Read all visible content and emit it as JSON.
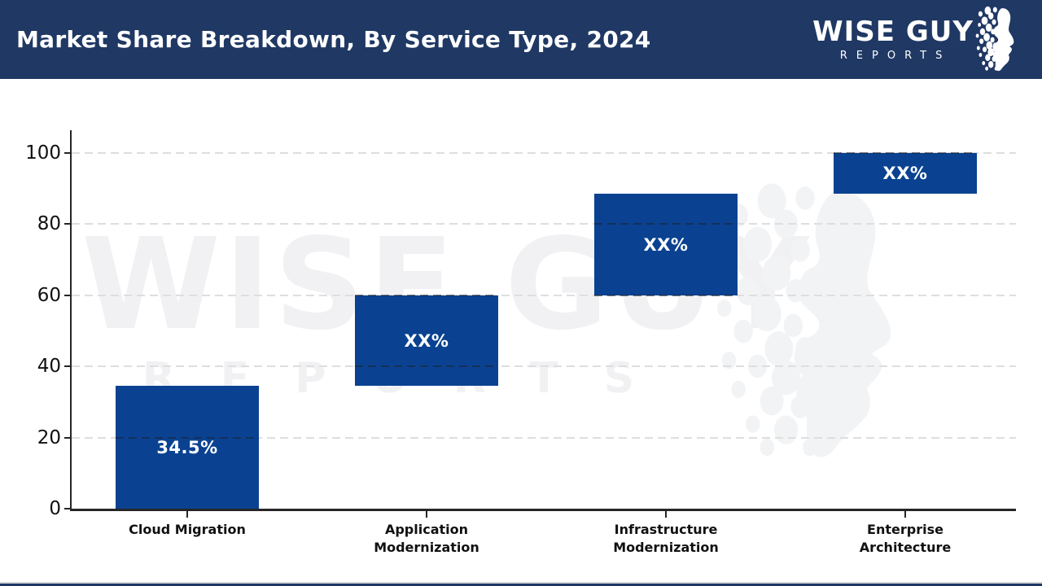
{
  "header": {
    "title": "Market Share Breakdown, By Service Type, 2024",
    "brand": {
      "name": "WISE GUY",
      "sub": "REPORTS"
    }
  },
  "watermark": {
    "line1": "WISE GUY",
    "line2": "REPORTS"
  },
  "chart_data": {
    "type": "bar",
    "variant": "waterfall",
    "title": "Market Share Breakdown, By Service Type, 2024",
    "categories": [
      "Cloud Migration",
      "Application Modernization",
      "Infrastructure Modernization",
      "Enterprise Architecture"
    ],
    "category_lines": [
      [
        "Cloud Migration"
      ],
      [
        "Application",
        "Modernization"
      ],
      [
        "Infrastructure",
        "Modernization"
      ],
      [
        "Enterprise",
        "Architecture"
      ]
    ],
    "segments": [
      {
        "category": "Cloud Migration",
        "start": 0,
        "end": 34.5,
        "value": 34.5,
        "label": "34.5%"
      },
      {
        "category": "Application Modernization",
        "start": 34.5,
        "end": 60,
        "value": 25.5,
        "label": "XX%"
      },
      {
        "category": "Infrastructure Modernization",
        "start": 60,
        "end": 88.5,
        "value": 28.5,
        "label": "XX%"
      },
      {
        "category": "Enterprise Architecture",
        "start": 88.5,
        "end": 100,
        "value": 11.5,
        "label": "XX%"
      }
    ],
    "xlabel": "",
    "ylabel": "",
    "ylim": [
      0,
      100
    ],
    "yticks": [
      0,
      20,
      40,
      60,
      80,
      100
    ],
    "grid": true,
    "legend": false,
    "bar_color": "#0a4291",
    "bar_label_color": "#ffffff"
  },
  "colors": {
    "header_bg": "#1f3864",
    "bar_blue": "#0a4291",
    "axis": "#262626",
    "gridline": "#dedede",
    "watermark": "#f2f3f5",
    "footer_bar": "#1f3864"
  }
}
